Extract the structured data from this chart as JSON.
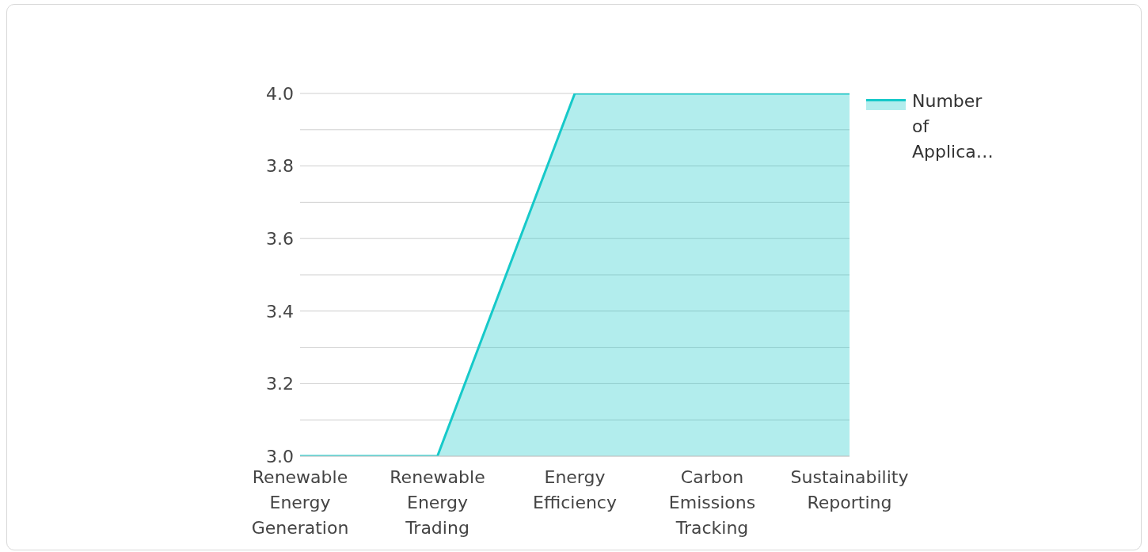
{
  "chart_data": {
    "type": "area",
    "categories": [
      "Renewable Energy Generation",
      "Renewable Energy Trading",
      "Energy Efficiency",
      "Carbon Emissions Tracking",
      "Sustainability Reporting"
    ],
    "series": [
      {
        "name": "Number of Applica…",
        "color": "#16c9c9",
        "values": [
          3,
          3,
          4,
          4,
          4
        ]
      }
    ],
    "ylim": [
      3,
      4
    ],
    "yticks": [
      {
        "value": 3,
        "label": "3.0"
      },
      {
        "value": 3.1,
        "label": null
      },
      {
        "value": 3.2,
        "label": "3.2"
      },
      {
        "value": 3.3,
        "label": null
      },
      {
        "value": 3.4,
        "label": "3.4"
      },
      {
        "value": 3.5,
        "label": null
      },
      {
        "value": 3.6,
        "label": "3.6"
      },
      {
        "value": 3.7,
        "label": null
      },
      {
        "value": 3.8,
        "label": "3.8"
      },
      {
        "value": 3.9,
        "label": null
      },
      {
        "value": 4,
        "label": "4.0"
      }
    ],
    "grid": "y",
    "legend": "top right"
  }
}
